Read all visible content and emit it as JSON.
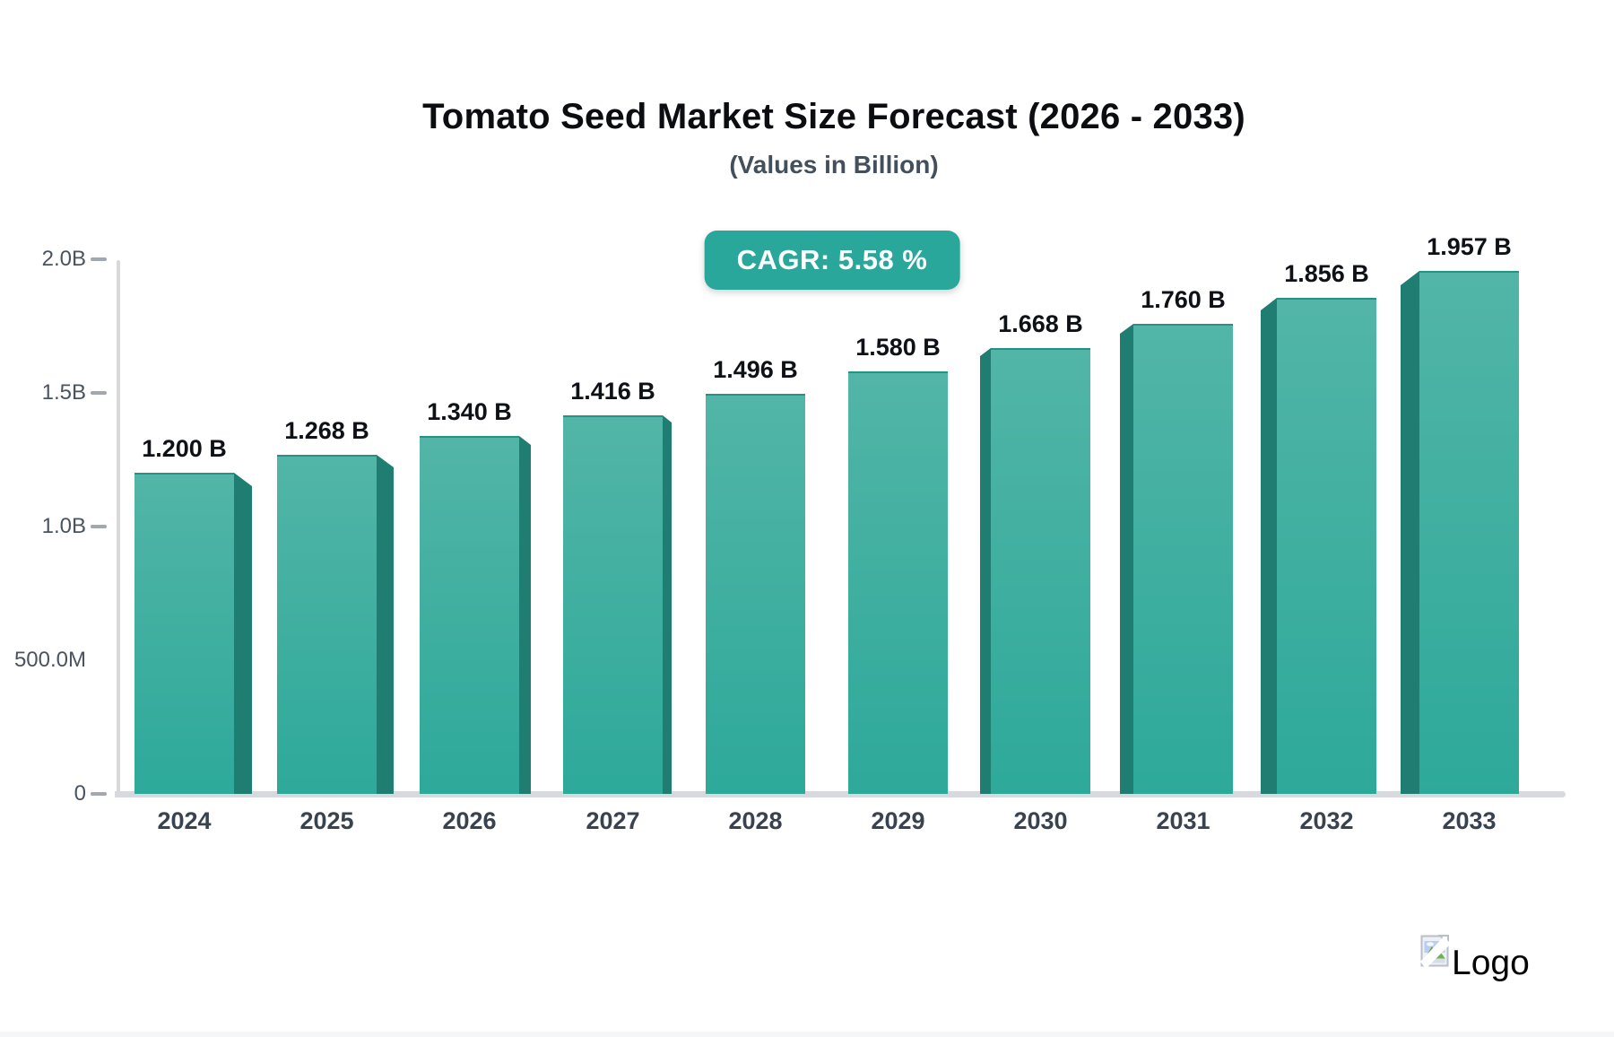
{
  "title": "Tomato Seed Market Size Forecast (2026 - 2033)",
  "subtitle": "(Values in Billion)",
  "cagr_badge": {
    "label": "CAGR: 5.58 %",
    "background": "#2aa79b",
    "text_color": "#ffffff"
  },
  "watermark": {
    "logo_alt_text": "Logo",
    "icon": "broken-image-icon"
  },
  "chart_data": {
    "type": "bar",
    "title": "Tomato Seed Market Size Forecast (2026 - 2033)",
    "subtitle": "(Values in Billion)",
    "unit": "Billion USD",
    "cagr_percent": 5.58,
    "categories": [
      "2024",
      "2025",
      "2026",
      "2027",
      "2028",
      "2029",
      "2030",
      "2031",
      "2032",
      "2033"
    ],
    "values": [
      1.2,
      1.268,
      1.34,
      1.416,
      1.496,
      1.58,
      1.668,
      1.76,
      1.856,
      1.957
    ],
    "bar_labels": [
      "1.200 B",
      "1.268 B",
      "1.340 B",
      "1.416 B",
      "1.496 B",
      "1.580 B",
      "1.668 B",
      "1.760 B",
      "1.856 B",
      "1.957 B"
    ],
    "y_axis": {
      "ticks": [
        "2.0B",
        "1.5B",
        "1.0B",
        "500.0M",
        "0"
      ],
      "tick_values": [
        2.0,
        1.5,
        1.0,
        0.5,
        0
      ],
      "range": [
        0,
        2.0
      ]
    },
    "legend": "none",
    "grid": "off",
    "colors": {
      "bar_face_top": "#52b5a7",
      "bar_face_bottom": "#2da99a",
      "bar_side": "#1f7d72",
      "accent": "#2aa79b",
      "axis_line": "#d7d9de",
      "tick_text": "#4a5360",
      "value_label_text": "#0e1116",
      "category_text": "#39424f"
    }
  }
}
